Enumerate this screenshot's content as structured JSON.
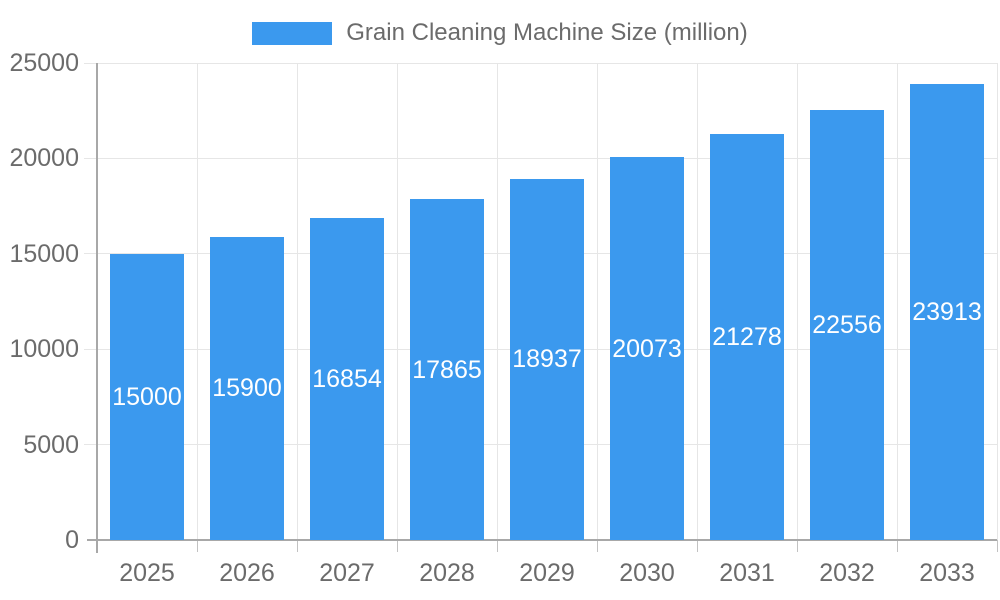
{
  "legend": {
    "label": "Grain Cleaning Machine Size (million)"
  },
  "chart_data": {
    "type": "bar",
    "title": "Grain Cleaning Machine Size (million)",
    "series_name": "Grain Cleaning Machine Size (million)",
    "categories": [
      "2025",
      "2026",
      "2027",
      "2028",
      "2029",
      "2030",
      "2031",
      "2032",
      "2033"
    ],
    "values": [
      15000,
      15900,
      16854,
      17865,
      18937,
      20073,
      21278,
      22556,
      23913
    ],
    "xlabel": "",
    "ylabel": "",
    "ylim": [
      0,
      25000
    ],
    "yticks": [
      0,
      5000,
      10000,
      15000,
      20000,
      25000
    ],
    "grid": true,
    "legend_position": "top",
    "bar_color": "#3B99EE",
    "value_label_color": "#ffffff",
    "axis_text_color": "#6b6b6b",
    "gridline_color": "#e6e6e6",
    "axis_line_color": "#a8a8a8",
    "tick_color": "#c2c2c2"
  }
}
